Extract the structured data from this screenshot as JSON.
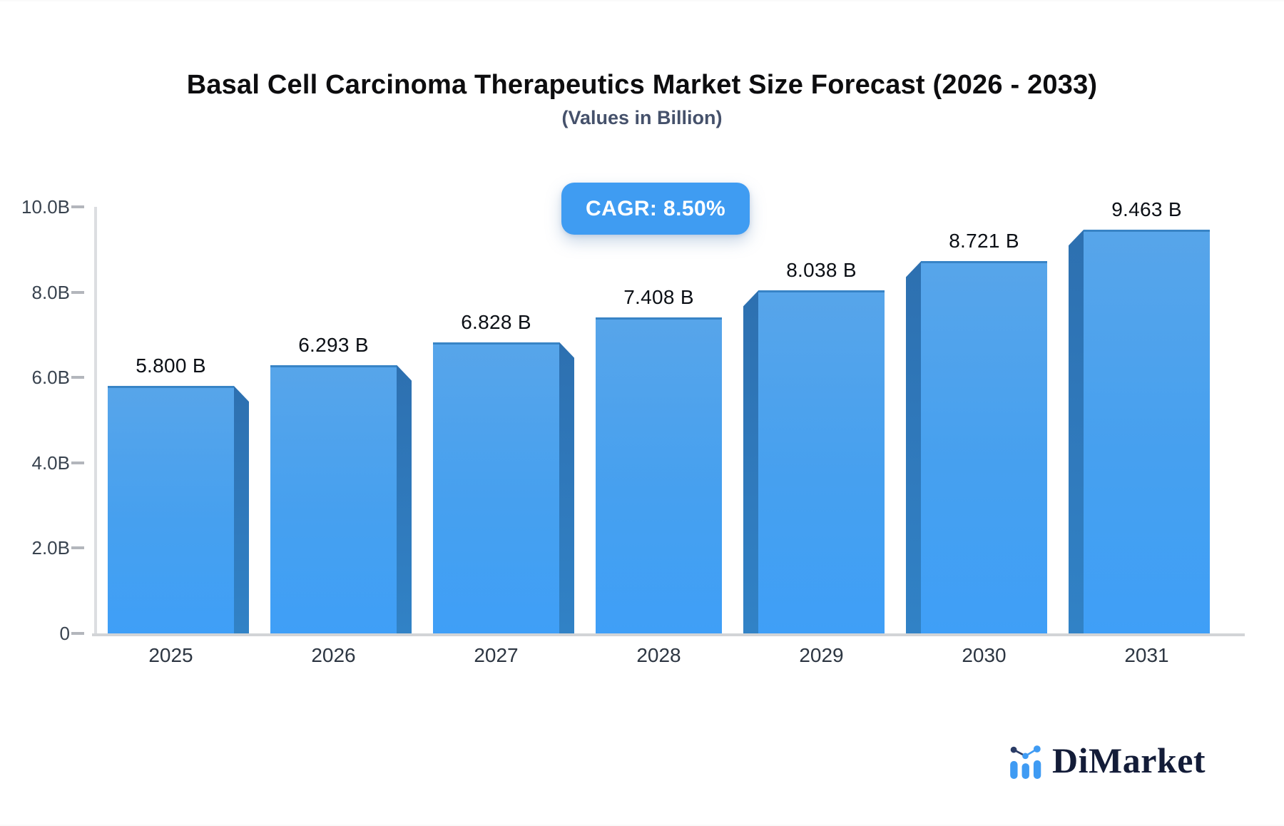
{
  "header": {
    "title": "Basal Cell Carcinoma Therapeutics Market Size Forecast (2026 - 2033)",
    "subtitle": "(Values in Billion)"
  },
  "badge": {
    "label": "CAGR: 8.50%",
    "bg_color": "#3f9cf2",
    "text_color": "#ffffff"
  },
  "chart_data": {
    "type": "bar",
    "title": "Basal Cell Carcinoma Therapeutics Market Size Forecast (2026 - 2033)",
    "subtitle": "(Values in Billion)",
    "annotation": "CAGR: 8.50%",
    "categories": [
      "2025",
      "2026",
      "2027",
      "2028",
      "2029",
      "2030",
      "2031"
    ],
    "values": [
      5.8,
      6.293,
      6.828,
      7.408,
      8.038,
      8.721,
      9.463
    ],
    "value_labels": [
      "5.800 B",
      "6.293 B",
      "6.828 B",
      "7.408 B",
      "8.038 B",
      "8.721 B",
      "9.463 B"
    ],
    "xlabel": "",
    "ylabel": "",
    "ylim": [
      0,
      10
    ],
    "yticks": {
      "values": [
        10,
        8,
        6,
        4,
        2,
        0
      ],
      "labels": [
        "10.0B",
        "8.0B",
        "6.0B",
        "4.0B",
        "2.0B",
        "0"
      ]
    },
    "grid": false,
    "legend": false,
    "bar_style": {
      "effect": "3d-center-perspective",
      "front_gradient": [
        "#57a5ea",
        "#3f9ff7"
      ],
      "side_color": "#2f77b9",
      "top_edge_color": "#3884c6"
    }
  },
  "logo": {
    "name": "DiMarket",
    "icon": "mini-bar-line-chart-icon",
    "text_color": "#131c38",
    "accent_color": "#3f9bf3",
    "dot_dark_color": "#2b3c66"
  }
}
